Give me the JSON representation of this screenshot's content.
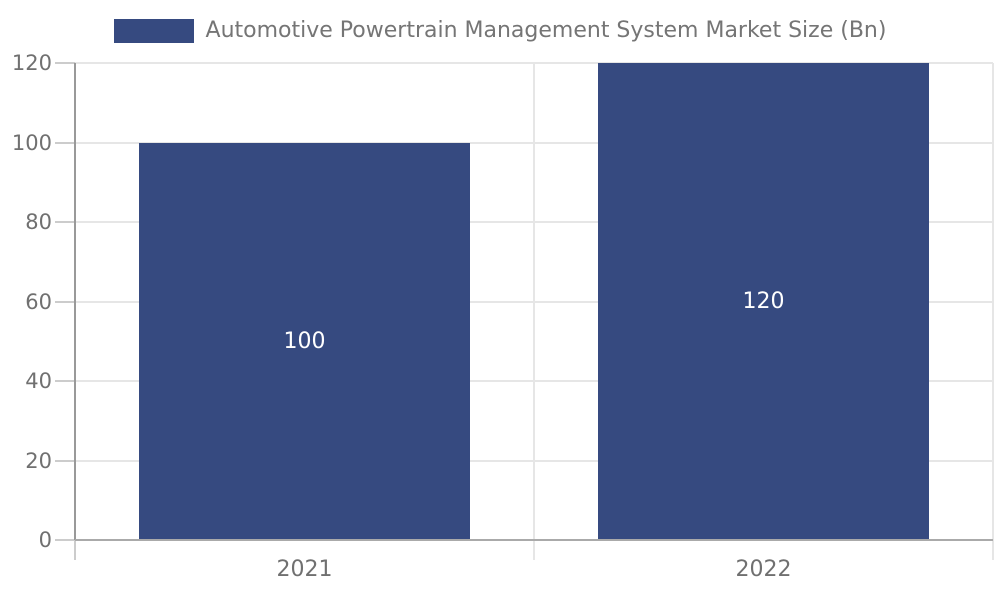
{
  "legend": {
    "label": "Automotive Powertrain Management System Market Size (Bn)"
  },
  "colors": {
    "bar": "#364a80",
    "legend_text": "#757575",
    "tick_text": "#707070",
    "gridline": "#e6e6e6",
    "axis_line": "#999999",
    "baseline": "#aaaaaa",
    "tick_mark": "#cccccc",
    "value_label": "#ffffff",
    "background": "#ffffff"
  },
  "chart_data": {
    "type": "bar",
    "title": "",
    "xlabel": "",
    "ylabel": "",
    "categories": [
      "2021",
      "2022"
    ],
    "values": [
      100,
      120
    ],
    "series": [
      {
        "name": "Automotive Powertrain Management System Market Size (Bn)",
        "values": [
          100,
          120
        ]
      }
    ],
    "ylim": [
      0,
      120
    ],
    "yticks": [
      0,
      20,
      40,
      60,
      80,
      100,
      120
    ],
    "grid": true,
    "legend_position": "top",
    "data_labels": true
  }
}
